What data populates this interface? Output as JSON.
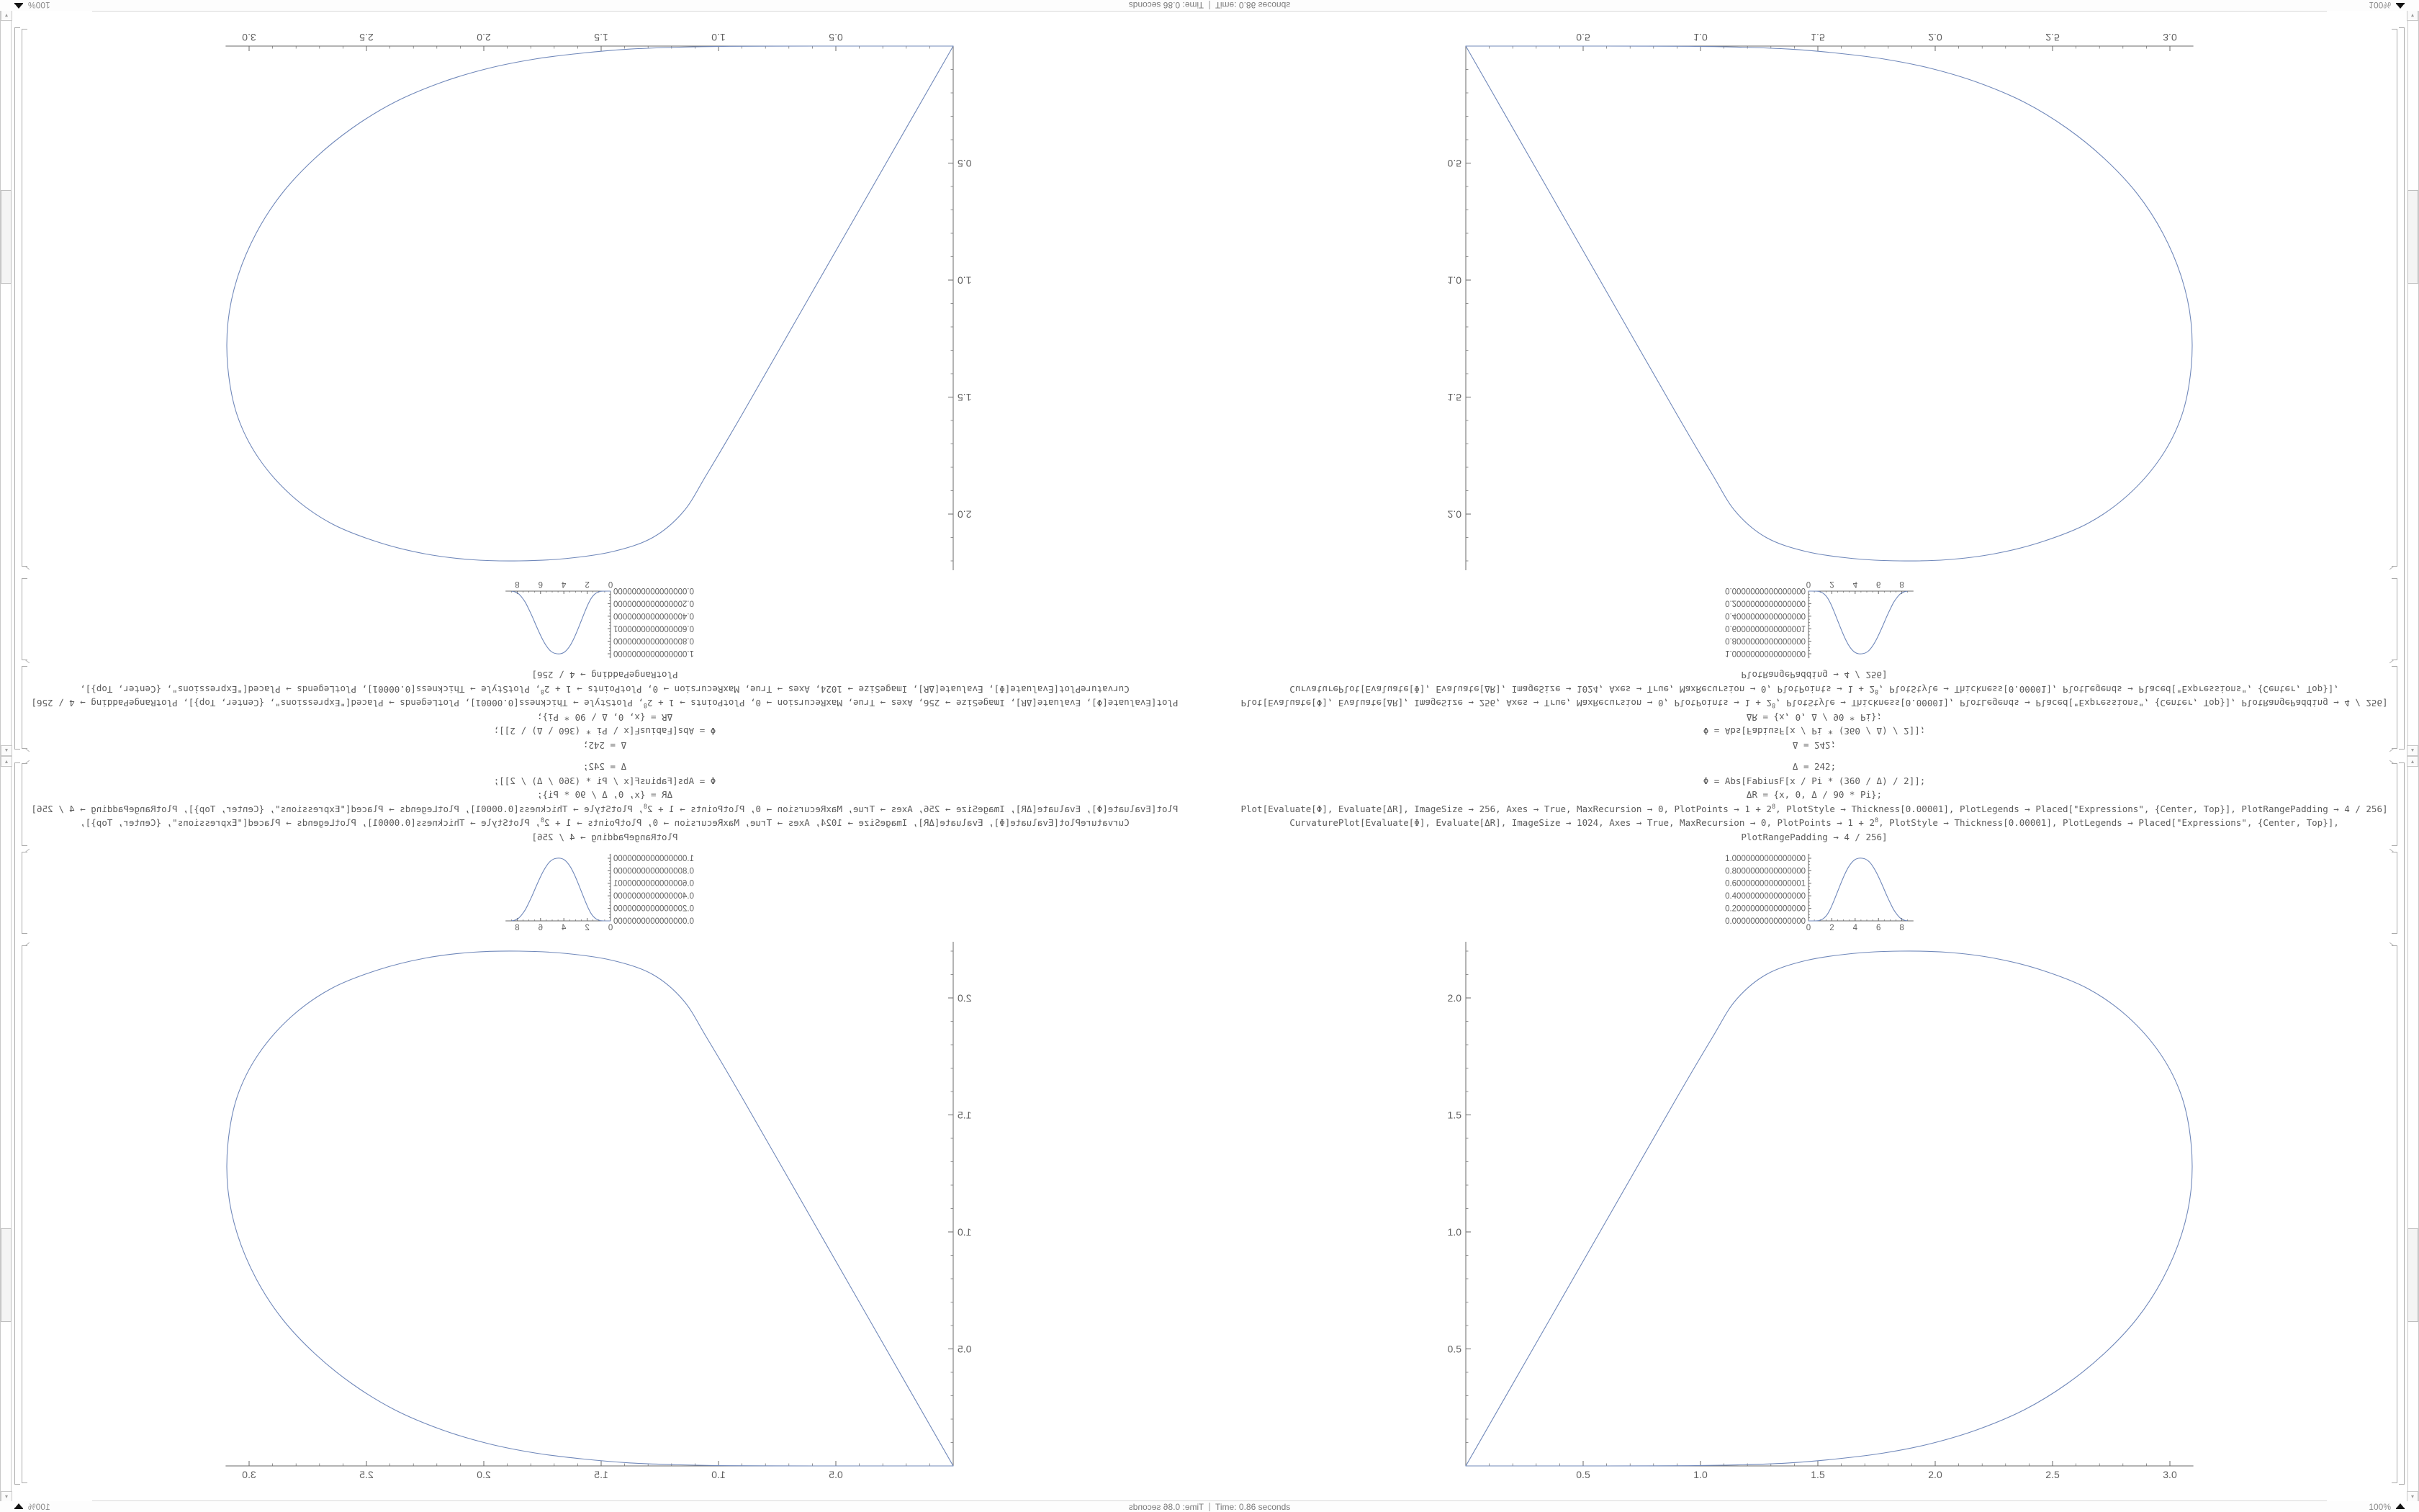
{
  "status": {
    "time_text": "Time: 0.86 seconds",
    "zoom_label": "100%"
  },
  "scrollbar": {
    "up_icon": "▴",
    "down_icon": "▾"
  },
  "colors": {
    "curve": "#7088ba",
    "axis": "#696969",
    "bracket": "#ababab",
    "separator": "#d9d9d9"
  },
  "code": {
    "lines": [
      {
        "segments": [
          {
            "t": "Δ = 242;"
          }
        ]
      },
      {
        "segments": [
          {
            "t": "Φ = Abs[FabiusF[x / Pi * (360 / Δ) / 2]];"
          }
        ]
      },
      {
        "segments": [
          {
            "t": "ΔR = {x, 0, Δ / 90 * Pi};"
          }
        ]
      },
      {
        "segments": [
          {
            "t": "Plot[Evaluate[Φ], Evaluate[ΔR], ImageSize → 256, Axes → True, MaxRecursion → 0, PlotPoints → 1 + 2"
          },
          {
            "t": "8",
            "sup": true
          },
          {
            "t": ", PlotStyle → Thickness[0.00001], PlotLegends → Placed[\"Expressions\", {Center, Top}], PlotRangePadding → 4 / 256]"
          }
        ]
      },
      {
        "segments": [
          {
            "t": "CurvaturePlot[Evaluate[Φ], Evaluate[ΔR], ImageSize → 1024, Axes → True, MaxRecursion → 0, PlotPoints → 1 + 2"
          },
          {
            "t": "8",
            "sup": true
          },
          {
            "t": ", PlotStyle → Thickness[0.00001], PlotLegends → Placed[\"Expressions\", {Center, Top}],"
          }
        ]
      },
      {
        "segments": [
          {
            "t": "PlotRangePadding → 4 / 256]"
          }
        ]
      }
    ]
  },
  "chart_data": [
    {
      "id": "bump-plot",
      "type": "line",
      "title": "",
      "xlabel": "",
      "ylabel": "",
      "xlim": [
        0,
        9.0
      ],
      "ylim": [
        0,
        1.07
      ],
      "grid": false,
      "legend": "none",
      "x_ticks": [
        {
          "v": 0,
          "label": "0"
        },
        {
          "v": 2,
          "label": "2"
        },
        {
          "v": 4,
          "label": "4"
        },
        {
          "v": 6,
          "label": "6"
        },
        {
          "v": 8,
          "label": "8"
        }
      ],
      "x_minor_step": 0.5,
      "y_ticks": [
        {
          "v": 1.0,
          "label": "1.0000000000000000"
        },
        {
          "v": 0.8,
          "label": "0.8000000000000000"
        },
        {
          "v": 0.6,
          "label": "0.6000000000000001"
        },
        {
          "v": 0.4,
          "label": "0.4000000000000000"
        },
        {
          "v": 0.2,
          "label": "0.2000000000000000"
        },
        {
          "v": 0.0,
          "label": "0.0000000000000000"
        }
      ],
      "y_minor_step": 0.05,
      "points": [
        [
          0,
          0
        ],
        [
          0.7,
          0.001
        ],
        [
          1.0,
          0.01
        ],
        [
          1.3,
          0.04
        ],
        [
          1.6,
          0.1
        ],
        [
          1.9,
          0.2
        ],
        [
          2.2,
          0.33
        ],
        [
          2.5,
          0.47
        ],
        [
          2.8,
          0.61
        ],
        [
          3.1,
          0.74
        ],
        [
          3.4,
          0.85
        ],
        [
          3.7,
          0.93
        ],
        [
          4.0,
          0.98
        ],
        [
          4.3,
          1.0
        ],
        [
          4.6,
          1.0
        ],
        [
          4.9,
          0.985
        ],
        [
          5.2,
          0.945
        ],
        [
          5.5,
          0.875
        ],
        [
          5.8,
          0.78
        ],
        [
          6.1,
          0.665
        ],
        [
          6.4,
          0.54
        ],
        [
          6.7,
          0.41
        ],
        [
          7.0,
          0.29
        ],
        [
          7.3,
          0.18
        ],
        [
          7.6,
          0.1
        ],
        [
          7.9,
          0.04
        ],
        [
          8.2,
          0.012
        ],
        [
          8.45,
          0.003
        ]
      ]
    },
    {
      "id": "curvature-plot",
      "type": "line",
      "title": "",
      "xlabel": "",
      "ylabel": "",
      "xlim": [
        0,
        3.1
      ],
      "ylim": [
        0,
        2.24
      ],
      "grid": false,
      "legend": "none",
      "x_ticks": [
        {
          "v": 0.5,
          "label": "0.5"
        },
        {
          "v": 1.0,
          "label": "1.0"
        },
        {
          "v": 1.5,
          "label": "1.5"
        },
        {
          "v": 2.0,
          "label": "2.0"
        },
        {
          "v": 2.5,
          "label": "2.5"
        },
        {
          "v": 3.0,
          "label": "3.0"
        }
      ],
      "x_minor_step": 0.1,
      "y_ticks": [
        {
          "v": 0.5,
          "label": "0.5"
        },
        {
          "v": 1.0,
          "label": "1.0"
        },
        {
          "v": 1.5,
          "label": "1.5"
        },
        {
          "v": 2.0,
          "label": "2.0"
        }
      ],
      "y_minor_step": 0.1,
      "points": [
        [
          0,
          0
        ],
        [
          0.3,
          0.525
        ],
        [
          0.6,
          1.05
        ],
        [
          0.9,
          1.575
        ],
        [
          1.05,
          1.83
        ],
        [
          1.15,
          1.99
        ],
        [
          1.28,
          2.1
        ],
        [
          1.45,
          2.16
        ],
        [
          1.65,
          2.19
        ],
        [
          1.85,
          2.2
        ],
        [
          2.05,
          2.195
        ],
        [
          2.25,
          2.17
        ],
        [
          2.45,
          2.12
        ],
        [
          2.65,
          2.04
        ],
        [
          2.82,
          1.92
        ],
        [
          2.96,
          1.76
        ],
        [
          3.05,
          1.58
        ],
        [
          3.09,
          1.38
        ],
        [
          3.09,
          1.18
        ],
        [
          3.05,
          0.99
        ],
        [
          2.97,
          0.8
        ],
        [
          2.86,
          0.63
        ],
        [
          2.72,
          0.48
        ],
        [
          2.56,
          0.35
        ],
        [
          2.38,
          0.24
        ],
        [
          2.18,
          0.155
        ],
        [
          1.98,
          0.095
        ],
        [
          1.78,
          0.055
        ],
        [
          1.58,
          0.03
        ],
        [
          1.38,
          0.013
        ],
        [
          1.18,
          0.005
        ],
        [
          0.95,
          0.001
        ],
        [
          0.6,
          0
        ],
        [
          0.3,
          0
        ],
        [
          0,
          0
        ]
      ]
    }
  ]
}
